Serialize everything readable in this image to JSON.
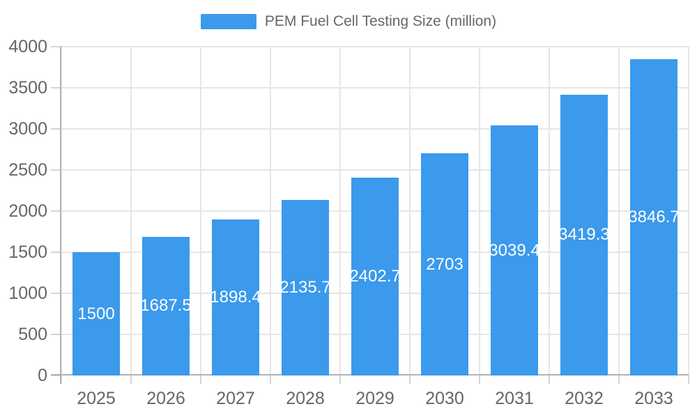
{
  "chart_data": {
    "type": "bar",
    "title": "PEM Fuel Cell Testing Size (million)",
    "legend_label": "PEM Fuel Cell Testing Size (million)",
    "legend_position": "top",
    "categories": [
      "2025",
      "2026",
      "2027",
      "2028",
      "2029",
      "2030",
      "2031",
      "2032",
      "2033"
    ],
    "series": [
      {
        "name": "PEM Fuel Cell Testing Size (million)",
        "values": [
          1500,
          1687.5,
          1898.4,
          2135.7,
          2402.7,
          2703,
          3039.4,
          3419.3,
          3846.7
        ]
      }
    ],
    "value_labels": [
      "1500",
      "1687.5",
      "1898.4",
      "2135.7",
      "2402.7",
      "2703",
      "3039.4",
      "3419.3",
      "3846.7"
    ],
    "xlabel": "",
    "ylabel": "",
    "ylim": [
      0,
      4000
    ],
    "ytick_step": 500,
    "yticks": [
      "0",
      "500",
      "1000",
      "1500",
      "2000",
      "2500",
      "3000",
      "3500",
      "4000"
    ],
    "grid": true,
    "colors": {
      "bar": "#3B9AEC",
      "gridline": "#e6e6e6",
      "tick": "#d4d4d4",
      "axis_line": "#b3b3b3",
      "axis_text": "#666666",
      "value_text": "#ffffff",
      "legend_text": "#666666"
    }
  }
}
